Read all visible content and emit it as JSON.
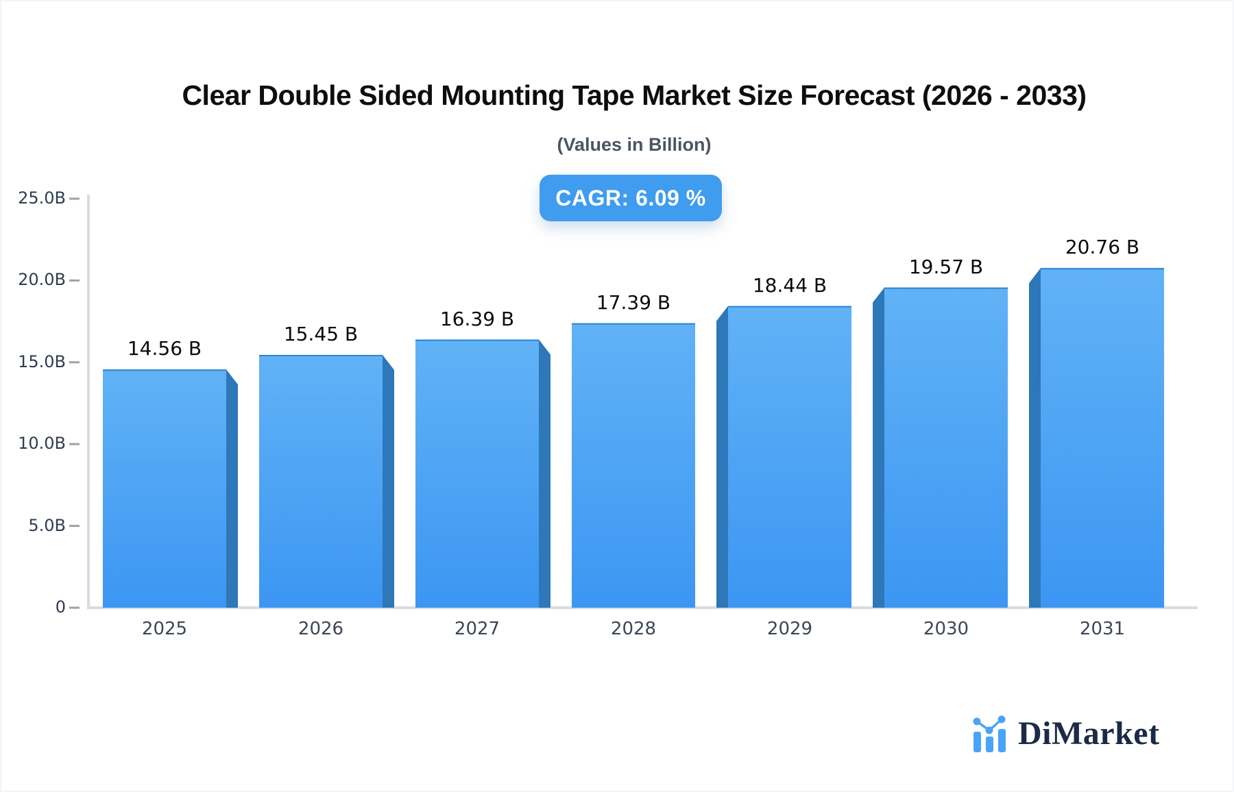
{
  "header": {
    "title": "Clear Double Sided Mounting Tape Market Size Forecast (2026 - 2033)",
    "subtitle": "(Values in Billion)"
  },
  "badge": {
    "label": "CAGR: 6.09 %"
  },
  "brand": {
    "name": "DiMarket",
    "icon": "bar-chart-logo-icon"
  },
  "colors": {
    "badge_blue": "#3f9cef",
    "bar_face_top": "#61b2f6",
    "bar_face_bottom": "#3c96f2",
    "bar_top_edge": "#2c83d4",
    "bar_side": "#2e77b8",
    "axis_line": "#d8dbe0",
    "tick_mark": "#9aa2ab",
    "ytick_text": "#2e3c50",
    "xtick_text": "#3b4757",
    "value_text": "#0b0b0b",
    "logo_blue": "#4aa3f7",
    "logo_navy": "#1b2a47"
  },
  "chart_data": {
    "type": "bar",
    "title": "Clear Double Sided Mounting Tape Market Size Forecast (2026 - 2033)",
    "subtitle": "(Values in Billion)",
    "categories": [
      "2025",
      "2026",
      "2027",
      "2028",
      "2029",
      "2030",
      "2031"
    ],
    "values": [
      14.56,
      15.45,
      16.39,
      17.39,
      18.44,
      19.57,
      20.76
    ],
    "value_labels": [
      "14.56 B",
      "15.45 B",
      "16.39 B",
      "17.39 B",
      "18.44 B",
      "19.57 B",
      "20.76 B"
    ],
    "cagr": "6.09 %",
    "xlabel": "",
    "ylabel": "",
    "ylim": [
      0,
      25
    ],
    "ytick_values": [
      25,
      20,
      15,
      10,
      5,
      0
    ],
    "ytick_labels": [
      "25.0B",
      "20.0B",
      "15.0B",
      "10.0B",
      "5.0B",
      "0"
    ],
    "grid": false,
    "legend": false
  }
}
